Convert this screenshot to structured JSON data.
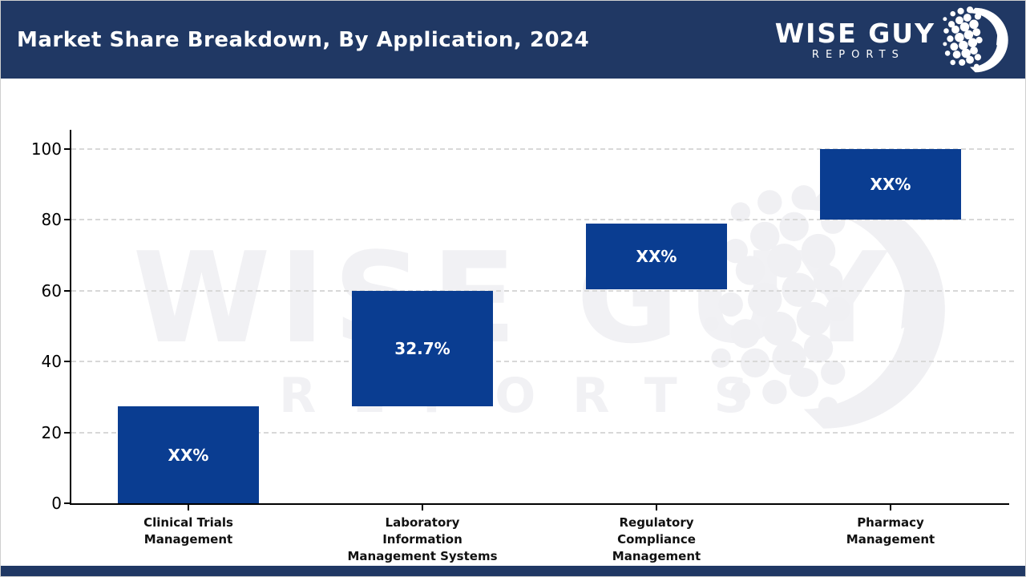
{
  "header": {
    "title": "Market Share Breakdown, By Application, 2024",
    "logo": {
      "line1": "WISE GUY",
      "line2": "REPORTS"
    },
    "bg_color": "#203864"
  },
  "watermark": {
    "line1": "WISE GUY",
    "line2": "REPORTS"
  },
  "chart_data": {
    "type": "bar",
    "subtype": "floating-segment-waterfall",
    "title": "Market Share Breakdown, By Application, 2024",
    "categories": [
      "Clinical Trials Management",
      "Laboratory Information Management Systems",
      "Regulatory Compliance Management",
      "Pharmacy Management"
    ],
    "category_lines": [
      [
        "Clinical Trials",
        "Management"
      ],
      [
        "Laboratory",
        "Information",
        "Management Systems"
      ],
      [
        "Regulatory",
        "Compliance",
        "Management"
      ],
      [
        "Pharmacy",
        "Management"
      ]
    ],
    "segments": [
      {
        "category": "Clinical Trials Management",
        "start": 0,
        "end": 27.3,
        "label": "XX%"
      },
      {
        "category": "Laboratory Information Management Systems",
        "start": 27.3,
        "end": 60,
        "label": "32.7%"
      },
      {
        "category": "Regulatory Compliance Management",
        "start": 60.3,
        "end": 79,
        "label": "XX%"
      },
      {
        "category": "Pharmacy Management",
        "start": 80,
        "end": 100,
        "label": "XX%"
      }
    ],
    "yticks": [
      0,
      20,
      40,
      60,
      80,
      100
    ],
    "ylim": [
      0,
      105
    ],
    "xlabel": "",
    "ylabel": "",
    "grid": true,
    "legend": false,
    "bar_color": "#0a3d91",
    "bar_label_color": "#ffffff",
    "axis_color": "#000000",
    "grid_color": "#d8d8d8"
  },
  "footer": {
    "bg_color": "#203864"
  }
}
